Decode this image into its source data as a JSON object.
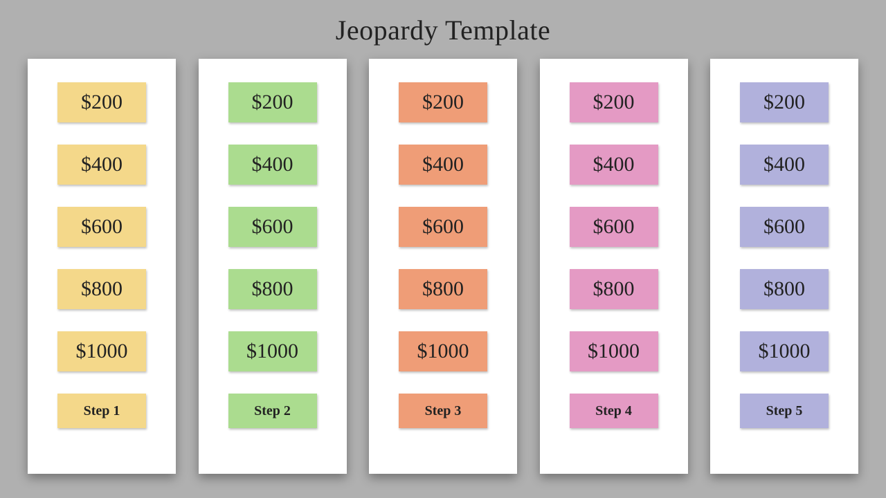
{
  "title": "Jeopardy Template",
  "background_color": "#b0b0b0",
  "column_bg": "#ffffff",
  "value_fontsize": 30,
  "step_fontsize": 20,
  "title_fontsize": 40,
  "values": [
    "$200",
    "$400",
    "$600",
    "$800",
    "$1000"
  ],
  "columns": [
    {
      "step_label": "Step 1",
      "color": "#f4d88a"
    },
    {
      "step_label": "Step 2",
      "color": "#abdc8f"
    },
    {
      "step_label": "Step 3",
      "color": "#ef9d77"
    },
    {
      "step_label": "Step 4",
      "color": "#e49ac4"
    },
    {
      "step_label": "Step 5",
      "color": "#b1b1dc"
    }
  ]
}
